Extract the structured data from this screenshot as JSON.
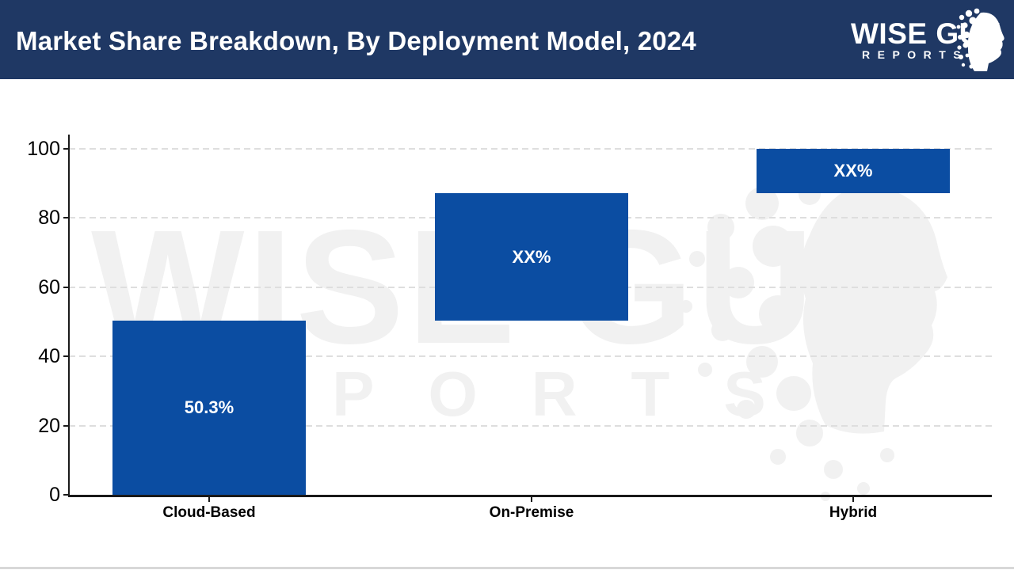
{
  "header": {
    "title": "Market Share Breakdown, By Deployment Model, 2024",
    "logo": {
      "wordmark": "WISE GUY",
      "subtext": "REPORTS"
    }
  },
  "watermark": {
    "line1": "WISE GU",
    "line2": "REPORTS"
  },
  "chart_data": {
    "type": "bar",
    "variant": "waterfall-breakdown",
    "title": "Market Share Breakdown, By Deployment Model, 2024",
    "categories": [
      "Cloud-Based",
      "On-Premise",
      "Hybrid"
    ],
    "segments": [
      {
        "category": "Cloud-Based",
        "start": 0,
        "end": 50.3,
        "label": "50.3%"
      },
      {
        "category": "On-Premise",
        "start": 50.3,
        "end": 87,
        "label": "XX%"
      },
      {
        "category": "Hybrid",
        "start": 87,
        "end": 100,
        "label": "XX%"
      }
    ],
    "yticks": [
      0,
      20,
      40,
      60,
      80,
      100
    ],
    "ylim": [
      0,
      104
    ],
    "xlabel": "",
    "ylabel": "",
    "grid": "horizontal-dashed",
    "legend": "none",
    "bar_color": "#0b4da2",
    "bar_label_color": "#ffffff"
  },
  "colors": {
    "header_bg": "#1f3864",
    "header_text": "#ffffff",
    "bar": "#0b4da2",
    "grid": "#dedede",
    "axis": "#1a1a1a",
    "watermark": "#f1f1f1",
    "footer_line": "#d8d8d8"
  }
}
